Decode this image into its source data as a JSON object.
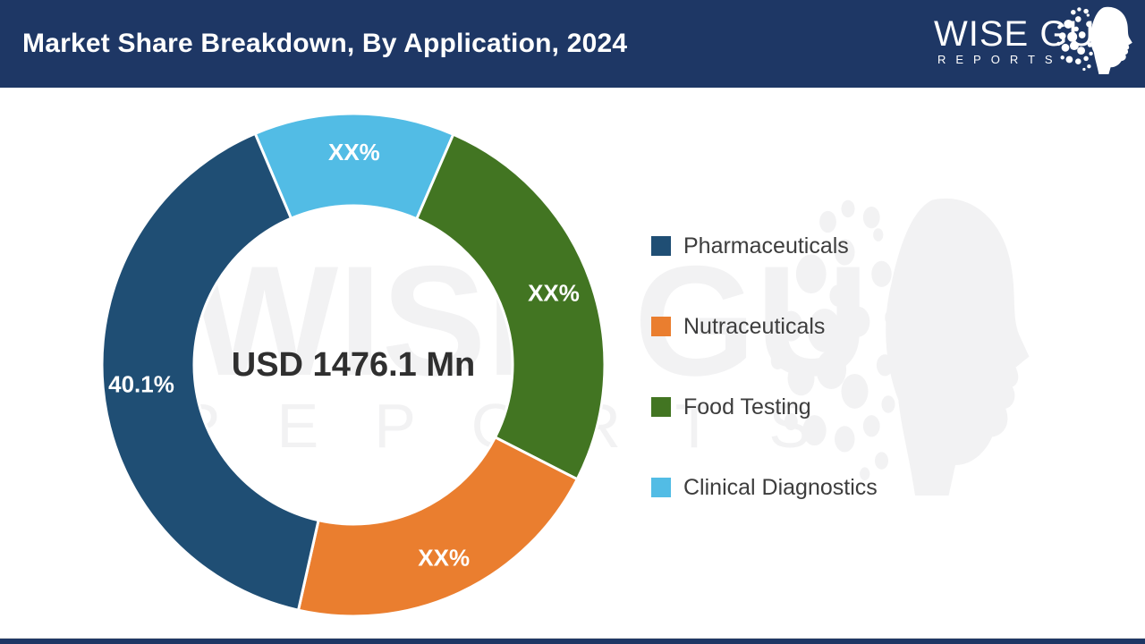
{
  "header": {
    "title": "Market Share Breakdown, By Application, 2024",
    "background_color": "#1E3765",
    "brand": {
      "name": "WISE GUY",
      "subname": "REPORTS"
    }
  },
  "watermark": {
    "line1": "WISE GU",
    "line2": "REPORTS"
  },
  "chart_data": {
    "type": "pie",
    "subtype": "donut",
    "title": "Market Share Breakdown, By Application, 2024",
    "center_label": "USD 1476.1 Mn",
    "start_angle_deg": -23,
    "direction": "clockwise",
    "inner_radius_ratio": 0.63,
    "legend_position": "right",
    "segments": [
      {
        "name": "Clinical Diagnostics",
        "value_pct": 12.9,
        "label": "XX%",
        "color": "#52BCE5"
      },
      {
        "name": "Food Testing",
        "value_pct": 26.0,
        "label": "XX%",
        "color": "#427522"
      },
      {
        "name": "Nutraceuticals",
        "value_pct": 21.0,
        "label": "XX%",
        "color": "#EA7E2F"
      },
      {
        "name": "Pharmaceuticals",
        "value_pct": 40.1,
        "label": "40.1%",
        "color": "#1F4E74"
      }
    ],
    "legend": [
      {
        "label": "Pharmaceuticals",
        "color": "#1F4E74"
      },
      {
        "label": "Nutraceuticals",
        "color": "#EA7E2F"
      },
      {
        "label": "Food Testing",
        "color": "#427522"
      },
      {
        "label": "Clinical Diagnostics",
        "color": "#52BCE5"
      }
    ]
  },
  "footer": {
    "bar_color": "#1E3765"
  }
}
